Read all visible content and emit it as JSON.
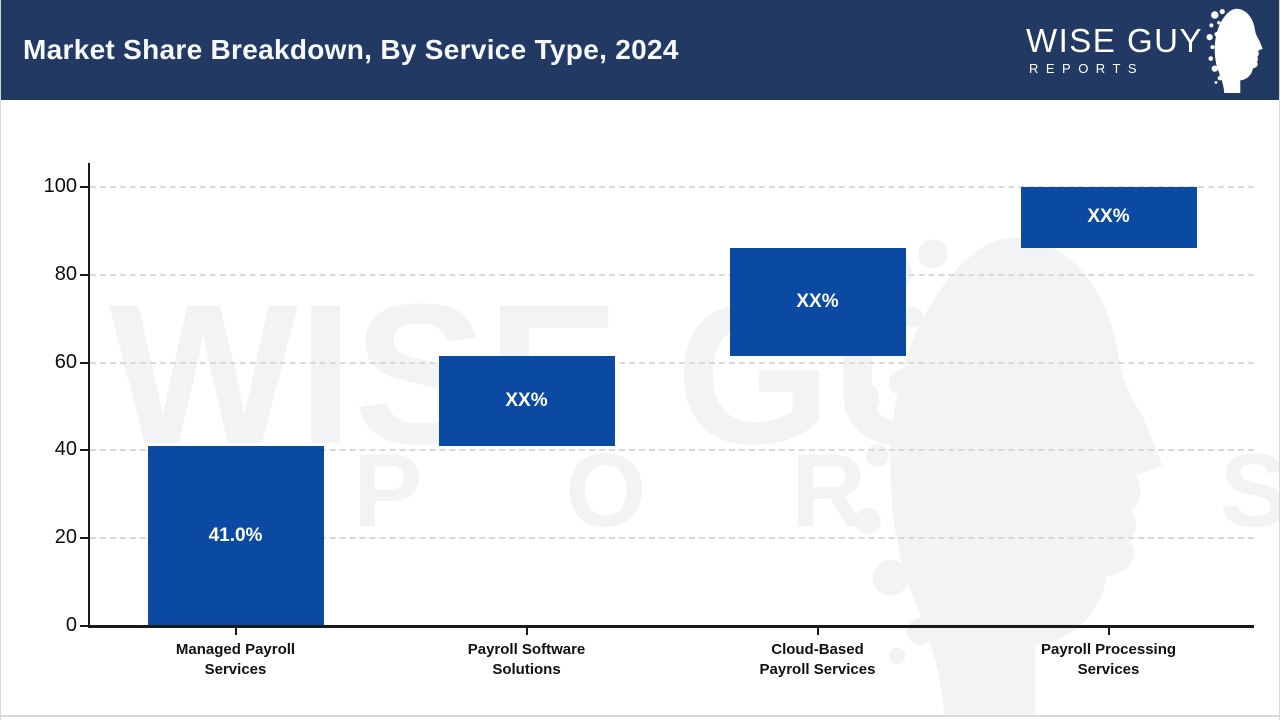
{
  "header": {
    "title": "Market Share Breakdown, By Service Type, 2024",
    "logo": {
      "line1": "WISE GUY",
      "line2": "REPORTS",
      "icon": "face-dots-icon"
    }
  },
  "watermark": {
    "line1": "WISE GUY",
    "line2": "P O R T S"
  },
  "chart_data": {
    "type": "bar",
    "subtype": "waterfall",
    "title": "Market Share Breakdown, By Service Type, 2024",
    "categories": [
      {
        "line1": "Managed Payroll",
        "line2": "Services"
      },
      {
        "line1": "Payroll Software",
        "line2": "Solutions"
      },
      {
        "line1": "Cloud-Based",
        "line2": "Payroll Services"
      },
      {
        "line1": "Payroll Processing",
        "line2": "Services"
      }
    ],
    "segments": [
      {
        "start": 0,
        "end": 41.0,
        "label": "41.0%"
      },
      {
        "start": 41.0,
        "end": 61.5,
        "label": "XX%"
      },
      {
        "start": 61.5,
        "end": 86.2,
        "label": "XX%"
      },
      {
        "start": 86.2,
        "end": 100.0,
        "label": "XX%"
      }
    ],
    "yticks": [
      0,
      20,
      40,
      60,
      80,
      100
    ],
    "ylim": [
      0,
      105
    ],
    "xlabel": "",
    "ylabel": "",
    "grid": "dashed-horizontal",
    "legend": "none",
    "colors": {
      "bar": "#0B4AA2",
      "bar_label": "#FFFFFF",
      "header_bg": "#223A63",
      "grid": "#D9D9D9",
      "axis": "#1A1A1A",
      "watermark": "#F2F3F5"
    }
  }
}
